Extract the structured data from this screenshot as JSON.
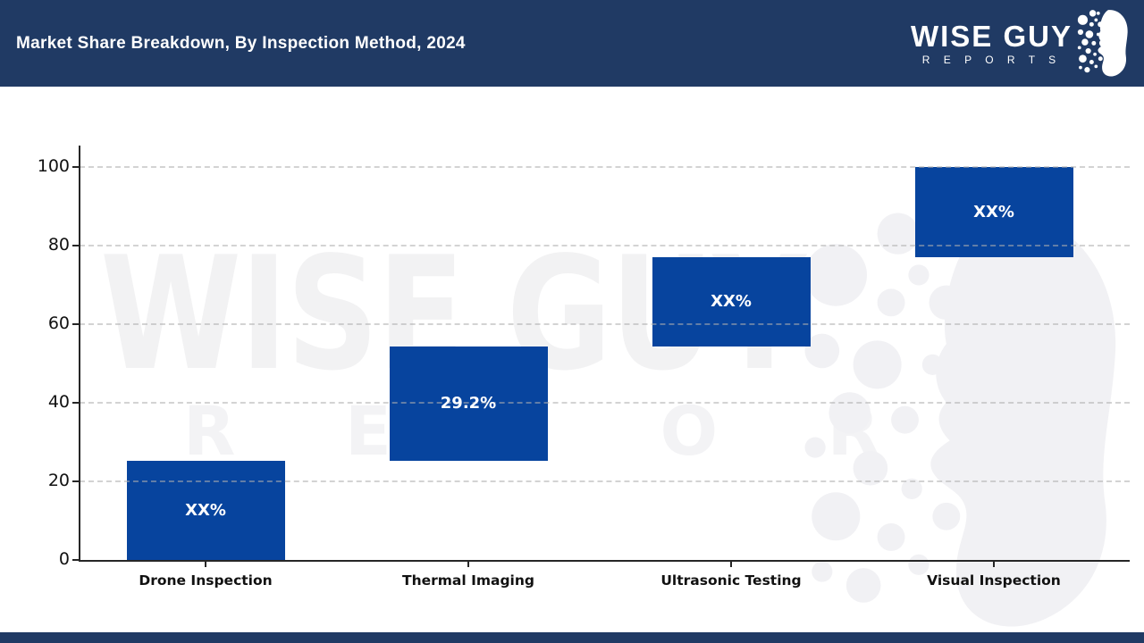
{
  "header": {
    "title": "Market Share Breakdown, By Inspection Method, 2024",
    "logo_line1": "WISE GUY",
    "logo_line2": "R E P O R T S"
  },
  "watermark": {
    "line1": "WISE GUY",
    "line2": "R E P O R T S"
  },
  "chart_data": {
    "type": "bar",
    "subtype": "floating-waterfall",
    "title": "Market Share Breakdown, By Inspection Method, 2024",
    "categories": [
      "Drone Inspection",
      "Thermal Imaging",
      "Ultrasonic Testing",
      "Visual Inspection"
    ],
    "segments": [
      {
        "category": "Drone Inspection",
        "start": 0,
        "end": 25.2,
        "label": "XX%"
      },
      {
        "category": "Thermal Imaging",
        "start": 25.2,
        "end": 54.4,
        "label": "29.2%"
      },
      {
        "category": "Ultrasonic Testing",
        "start": 54.4,
        "end": 77.1,
        "label": "XX%"
      },
      {
        "category": "Visual Inspection",
        "start": 77.1,
        "end": 100,
        "label": "XX%"
      }
    ],
    "yticks": [
      0,
      20,
      40,
      60,
      80,
      100
    ],
    "ylim": [
      0,
      105
    ],
    "xlabel": "",
    "ylabel": "",
    "grid": "horizontal-dashed-over-bars",
    "legend": "none",
    "bar_color": "#07449e",
    "bar_label_color": "#ffffff",
    "axis_color": "#262626",
    "grid_color": "#d8d8d8"
  },
  "colors": {
    "header_bg": "#203a64",
    "footer_bg": "#203a64",
    "watermark": "#f2f2f3"
  }
}
